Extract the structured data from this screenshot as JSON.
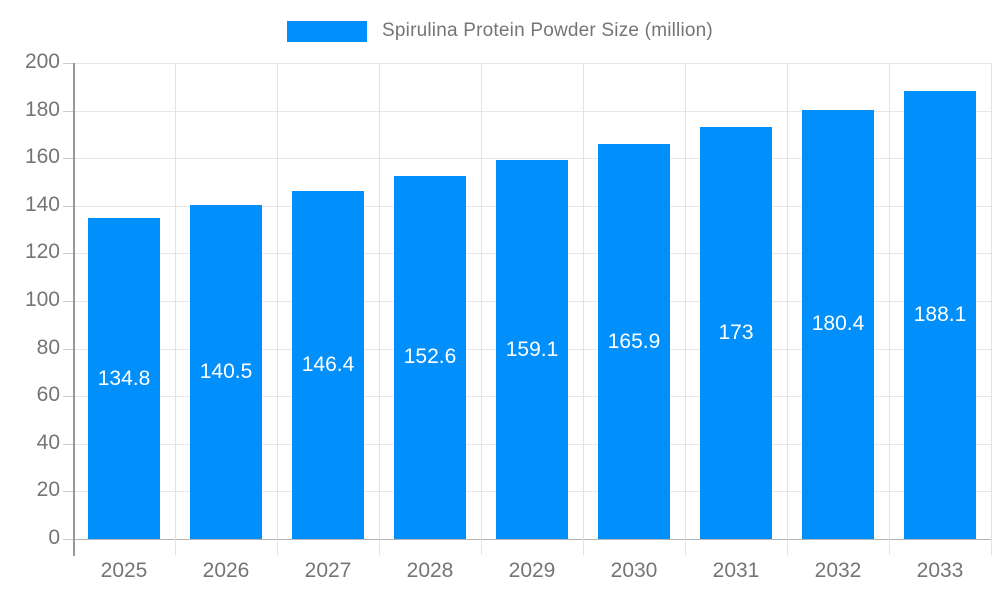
{
  "legend": {
    "label": "Spirulina Protein Powder Size (million)",
    "swatch_color": "#008FFB"
  },
  "chart_data": {
    "type": "bar",
    "title": "Spirulina Protein Powder Size (million)",
    "categories": [
      "2025",
      "2026",
      "2027",
      "2028",
      "2029",
      "2030",
      "2031",
      "2032",
      "2033"
    ],
    "values": [
      134.8,
      140.5,
      146.4,
      152.6,
      159.1,
      165.9,
      173,
      180.4,
      188.1
    ],
    "value_labels": [
      "134.8",
      "140.5",
      "146.4",
      "152.6",
      "159.1",
      "165.9",
      "173",
      "180.4",
      "188.1"
    ],
    "xlabel": "",
    "ylabel": "",
    "ylim": [
      0,
      200
    ],
    "ytick_step": 20,
    "ytick_labels": [
      "0",
      "20",
      "40",
      "60",
      "80",
      "100",
      "120",
      "140",
      "160",
      "180",
      "200"
    ],
    "grid": true,
    "legend_position": "top",
    "bar_color": "#008FFB",
    "bar_value_text_color": "#ffffff",
    "axis_text_color": "#757575",
    "grid_color": "#e7e7e7",
    "axis_line_color": "#979797"
  }
}
